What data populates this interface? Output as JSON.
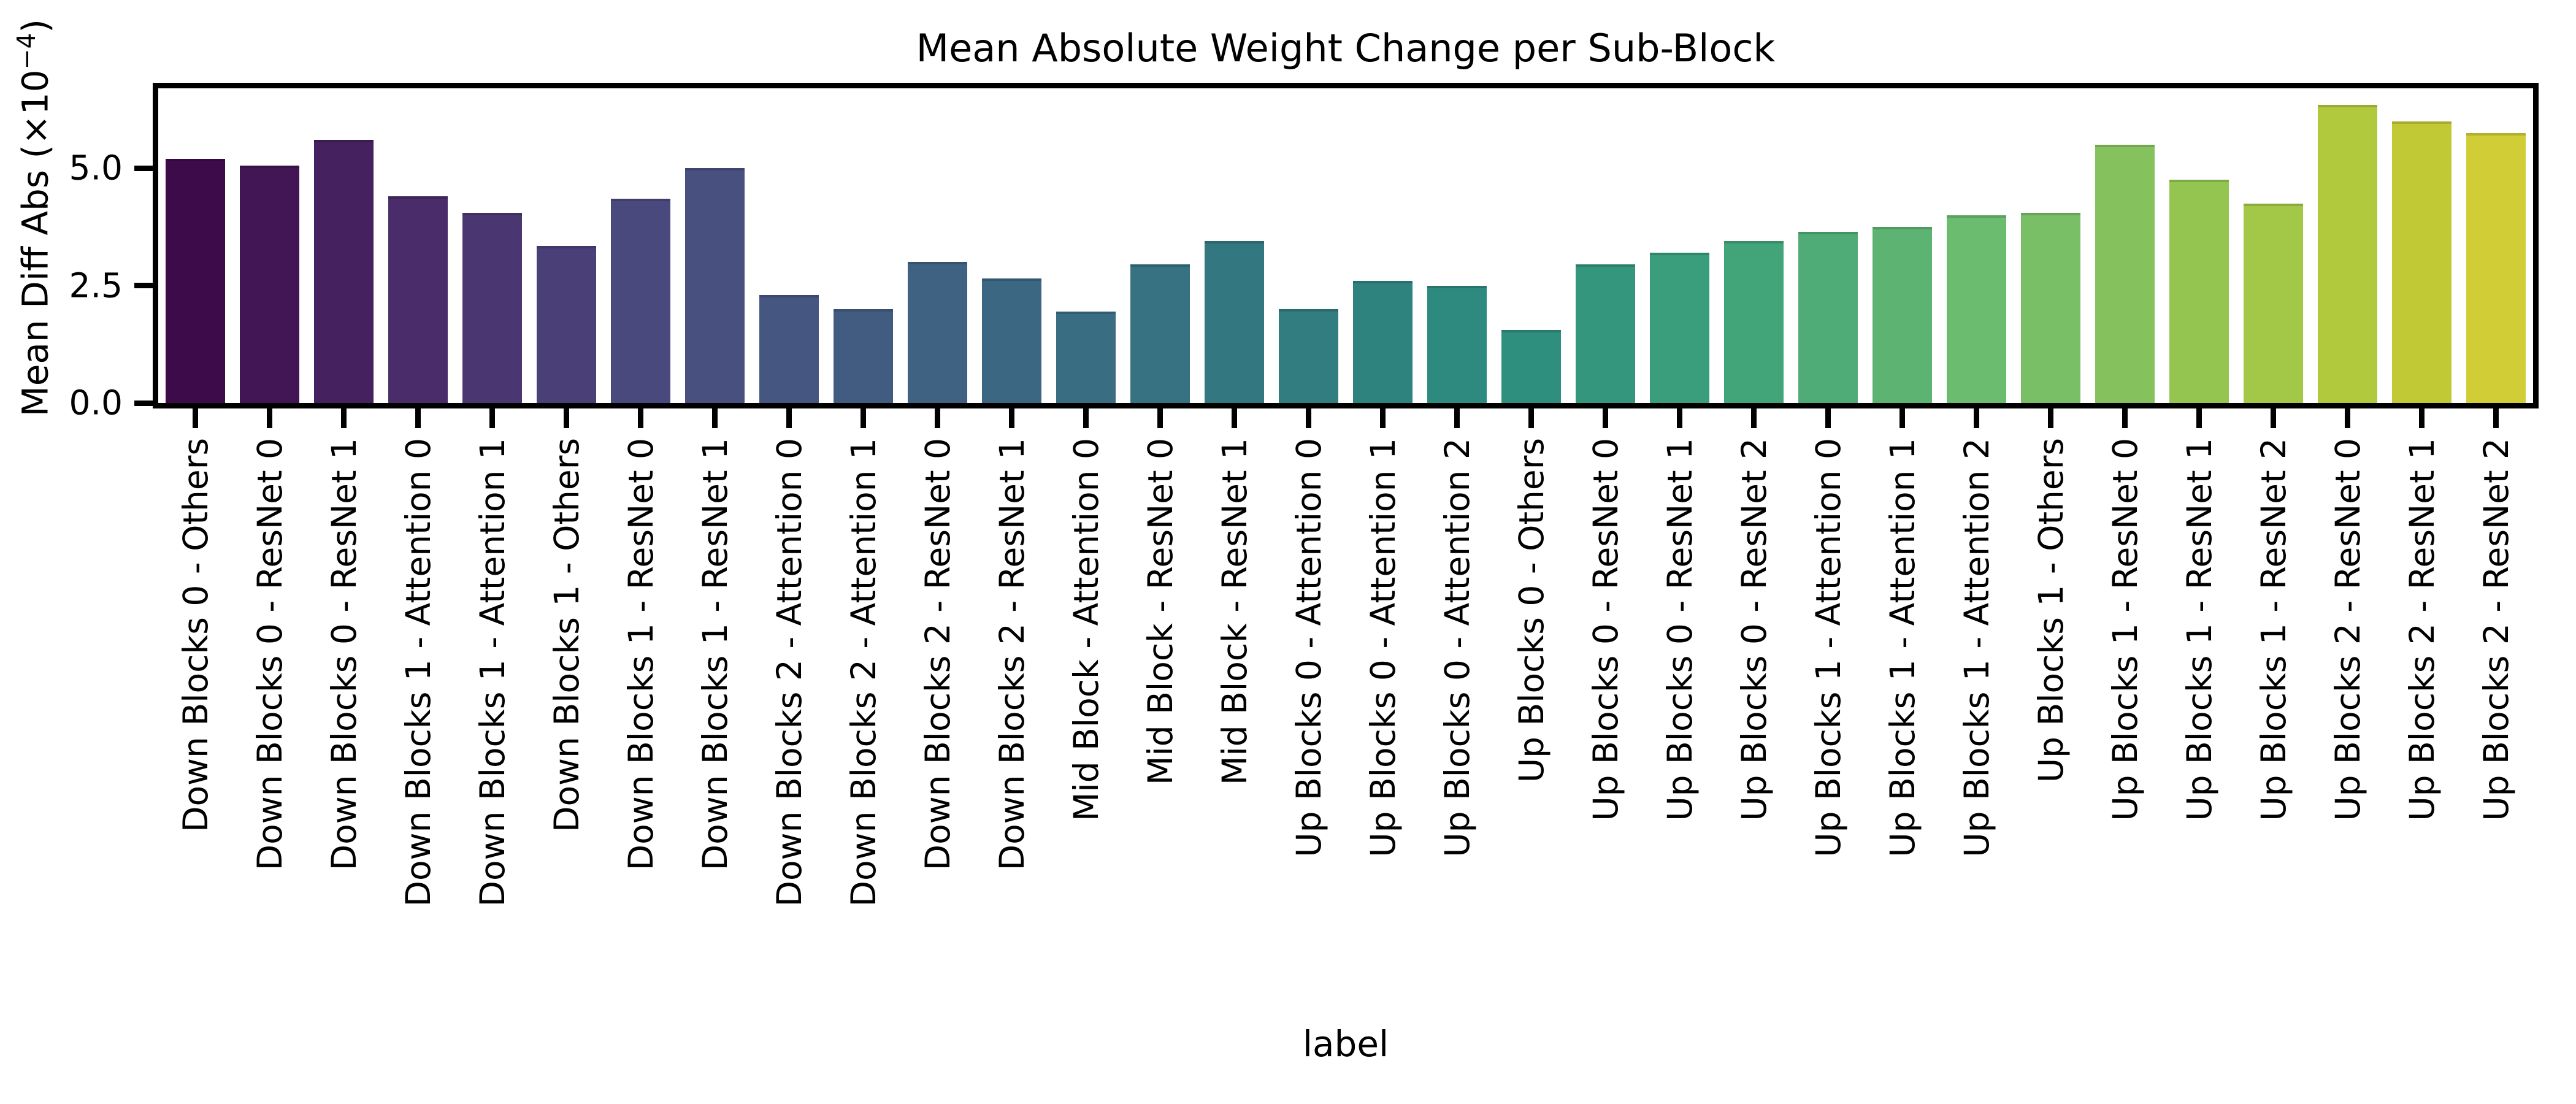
{
  "figure": {
    "title": "Mean Absolute Weight Change per Sub-Block",
    "x_axis_label": "label",
    "y_axis_label_prefix": "Mean Diff Abs (×10",
    "y_axis_label_sup": "−4",
    "y_axis_label_suffix": ")"
  },
  "chart_data": {
    "type": "bar",
    "title": "Mean Absolute Weight Change per Sub-Block",
    "xlabel": "label",
    "ylabel": "Mean Diff Abs (×10^−4)",
    "ylim": [
      0,
      6.7
    ],
    "y_ticks": [
      0.0,
      2.5,
      5.0
    ],
    "grid": false,
    "legend": "none",
    "categories": [
      "Down Blocks 0 - Others",
      "Down Blocks 0 - ResNet 0",
      "Down Blocks 0 - ResNet 1",
      "Down Blocks 1 - Attention 0",
      "Down Blocks 1 - Attention 1",
      "Down Blocks 1 - Others",
      "Down Blocks 1 - ResNet 0",
      "Down Blocks 1 - ResNet 1",
      "Down Blocks 2 - Attention 0",
      "Down Blocks 2 - Attention 1",
      "Down Blocks 2 - ResNet 0",
      "Down Blocks 2 - ResNet 1",
      "Mid Block - Attention 0",
      "Mid Block - ResNet 0",
      "Mid Block - ResNet 1",
      "Up Blocks 0 - Attention 0",
      "Up Blocks 0 - Attention 1",
      "Up Blocks 0 - Attention 2",
      "Up Blocks 0 - Others",
      "Up Blocks 0 - ResNet 0",
      "Up Blocks 0 - ResNet 1",
      "Up Blocks 0 - ResNet 2",
      "Up Blocks 1 - Attention 0",
      "Up Blocks 1 - Attention 1",
      "Up Blocks 1 - Attention 2",
      "Up Blocks 1 - Others",
      "Up Blocks 1 - ResNet 0",
      "Up Blocks 1 - ResNet 1",
      "Up Blocks 1 - ResNet 2",
      "Up Blocks 2 - ResNet 0",
      "Up Blocks 2 - ResNet 1",
      "Up Blocks 2 - ResNet 2"
    ],
    "values": [
      5.2,
      5.05,
      5.6,
      4.4,
      4.05,
      3.35,
      4.35,
      5.0,
      2.3,
      2.0,
      3.0,
      2.65,
      1.95,
      2.95,
      3.45,
      2.0,
      2.6,
      2.5,
      1.55,
      2.95,
      3.2,
      3.45,
      3.65,
      3.75,
      4.0,
      4.05,
      5.5,
      4.75,
      4.25,
      6.35,
      6.0,
      5.75
    ],
    "bar_colors": [
      "#3e0b4a",
      "#421655",
      "#45215f",
      "#492c69",
      "#4a3671",
      "#4b3f78",
      "#4a497d",
      "#485080",
      "#455681",
      "#425c81",
      "#3f6282",
      "#3c6782",
      "#396d82",
      "#367281",
      "#337781",
      "#317d80",
      "#2f837f",
      "#2e897e",
      "#2f8f7e",
      "#33967d",
      "#3a9d7b",
      "#42a579",
      "#4fac76",
      "#5db472",
      "#6cbc6f",
      "#79bf66",
      "#85c25d",
      "#94c551",
      "#a3c746",
      "#b1c93c",
      "#c1c935",
      "#d0cd37"
    ],
    "axis_color": "#000000",
    "background_color": "#ffffff"
  }
}
